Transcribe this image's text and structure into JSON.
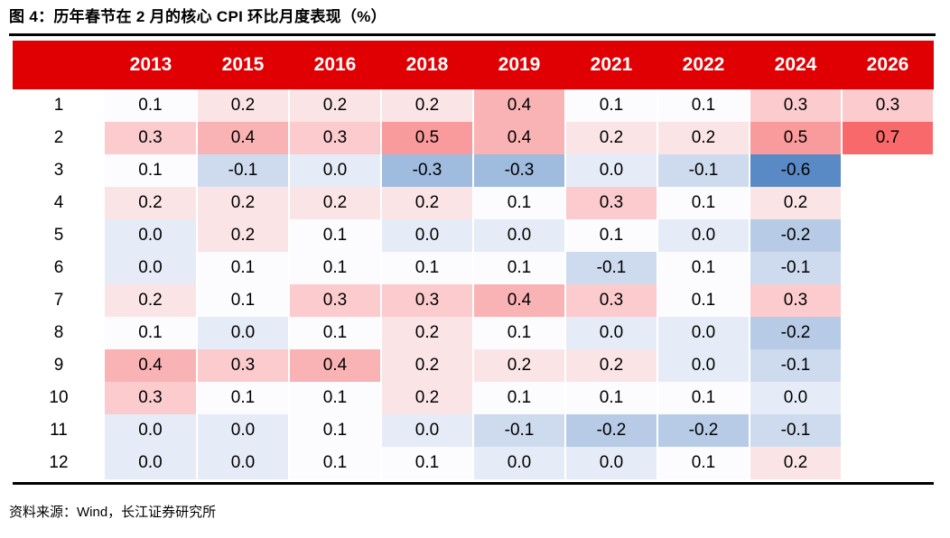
{
  "figure": {
    "title": "图 4：历年春节在 2 月的核心 CPI 环比月度表现（%）",
    "source": "资料来源：Wind，长江证券研究所"
  },
  "chart_data": {
    "type": "heatmap",
    "title": "历年春节在 2 月的核心 CPI 环比月度表现（%）",
    "unit": "%",
    "columns": [
      "2013",
      "2015",
      "2016",
      "2018",
      "2019",
      "2021",
      "2022",
      "2024",
      "2026"
    ],
    "row_label_header": "",
    "row_labels": [
      "1",
      "2",
      "3",
      "4",
      "5",
      "6",
      "7",
      "8",
      "9",
      "10",
      "11",
      "12"
    ],
    "values": [
      [
        0.1,
        0.2,
        0.2,
        0.2,
        0.4,
        0.1,
        0.1,
        0.3,
        0.3
      ],
      [
        0.3,
        0.4,
        0.3,
        0.5,
        0.4,
        0.2,
        0.2,
        0.5,
        0.7
      ],
      [
        0.1,
        -0.1,
        0.0,
        -0.3,
        -0.3,
        0.0,
        -0.1,
        -0.6,
        null
      ],
      [
        0.2,
        0.2,
        0.2,
        0.2,
        0.1,
        0.3,
        0.1,
        0.2,
        null
      ],
      [
        0.0,
        0.2,
        0.1,
        0.0,
        0.0,
        0.1,
        0.0,
        -0.2,
        null
      ],
      [
        0.0,
        0.1,
        0.1,
        0.1,
        0.1,
        -0.1,
        0.1,
        -0.1,
        null
      ],
      [
        0.2,
        0.1,
        0.3,
        0.3,
        0.4,
        0.3,
        0.1,
        0.3,
        null
      ],
      [
        0.1,
        0.0,
        0.1,
        0.2,
        0.1,
        0.0,
        0.0,
        -0.2,
        null
      ],
      [
        0.4,
        0.3,
        0.4,
        0.2,
        0.2,
        0.2,
        0.0,
        -0.1,
        null
      ],
      [
        0.3,
        0.1,
        0.1,
        0.2,
        0.1,
        0.1,
        0.1,
        0.0,
        null
      ],
      [
        0.0,
        0.0,
        0.1,
        0.0,
        -0.1,
        -0.2,
        -0.2,
        -0.1,
        null
      ],
      [
        0.0,
        0.0,
        0.1,
        0.1,
        0.0,
        0.0,
        0.1,
        0.2,
        null
      ]
    ],
    "value_decimals": 1,
    "layout": {
      "header_bg": "#E00003",
      "header_text_color": "#FFFFFF",
      "empty_cell_color": "#FFFFFF",
      "value_range": [
        -0.6,
        0.7
      ],
      "color_scale": {
        "mid_value": 0.1,
        "mid_color": "#FCFCFF",
        "max_color": "#F8696B",
        "min_color": "#5A8AC6",
        "pos_span": 0.6,
        "neg_span": 0.7
      }
    }
  }
}
